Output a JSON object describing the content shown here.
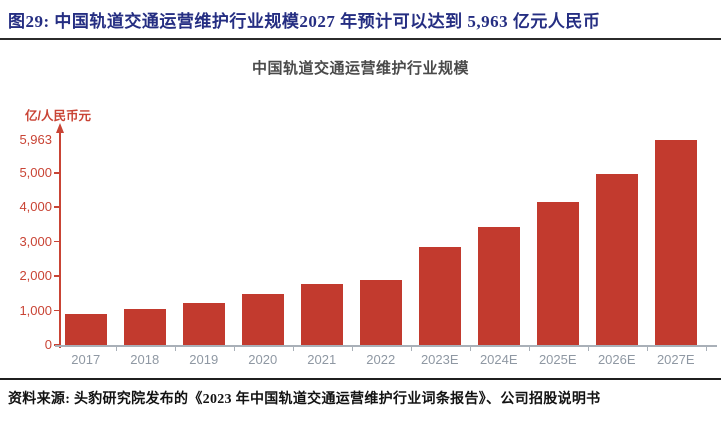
{
  "header": {
    "title": "图29: 中国轨道交通运营维护行业规模2027 年预计可以达到 5,963 亿元人民币"
  },
  "footer": {
    "source": "资料来源: 头豹研究院发布的《2023 年中国轨道交通运营维护行业词条报告》、公司招股说明书"
  },
  "chart_data": {
    "type": "bar",
    "title": "中国轨道交通运营维护行业规模",
    "ylabel": "亿/人民币元",
    "xlabel": "",
    "categories": [
      "2017",
      "2018",
      "2019",
      "2020",
      "2021",
      "2022",
      "2023E",
      "2024E",
      "2025E",
      "2026E",
      "2027E"
    ],
    "values": [
      900,
      1040,
      1230,
      1470,
      1760,
      1890,
      2850,
      3430,
      4150,
      4970,
      5963
    ],
    "ylim": [
      0,
      5963
    ],
    "yticks": [
      0,
      1000,
      2000,
      3000,
      4000,
      5000,
      5963
    ],
    "grid": false,
    "legend_position": "none",
    "colors": {
      "bar": "#c23a2e",
      "y_axis": "#c94435",
      "y_tick_label": "#c94435",
      "x_tick_label": "#8f98a3",
      "x_axis": "#a9b0b8",
      "chart_title": "#4a4a4a",
      "header_text": "#252e82"
    }
  }
}
